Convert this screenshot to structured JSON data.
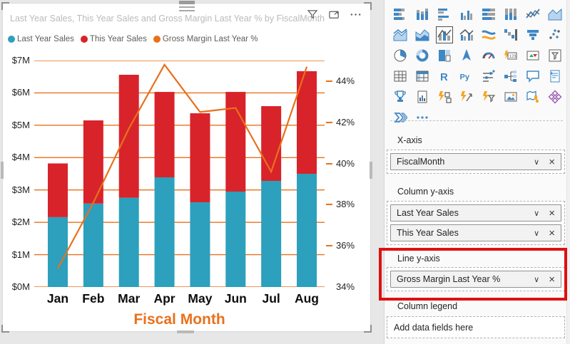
{
  "visual": {
    "title": "Last Year Sales, This Year Sales and Gross Margin Last Year % by FiscalMonth",
    "header_icons": [
      "filter-icon",
      "focus-mode-icon",
      "more-options-icon"
    ]
  },
  "chart_data": {
    "type": "combo-stacked-column-and-line",
    "title": "Last Year Sales, This Year Sales and Gross Margin Last Year % by FiscalMonth",
    "categories": [
      "Jan",
      "Feb",
      "Mar",
      "Apr",
      "May",
      "Jun",
      "Jul",
      "Aug"
    ],
    "series": [
      {
        "name": "Last Year Sales",
        "type": "column",
        "role": "stack-bottom",
        "color": "#2CA0BC",
        "unit": "$M",
        "values": [
          2.16,
          2.58,
          2.76,
          3.39,
          2.62,
          2.95,
          3.28,
          3.5
        ]
      },
      {
        "name": "This Year Sales",
        "type": "column",
        "role": "stack-top",
        "color": "#D8232A",
        "unit": "$M",
        "values": [
          1.66,
          2.57,
          3.8,
          2.64,
          2.75,
          3.08,
          2.31,
          3.17
        ]
      },
      {
        "name": "Gross Margin Last Year %",
        "type": "line",
        "color": "#E8711C",
        "unit": "%",
        "values": [
          34.9,
          38.1,
          41.7,
          44.8,
          42.5,
          42.7,
          39.6,
          44.7
        ]
      }
    ],
    "xlabel": "Fiscal Month",
    "xlabel_color": "#E8711C",
    "y_left": {
      "min": 0,
      "max": 7,
      "ticks": [
        "$0M",
        "$1M",
        "$2M",
        "$3M",
        "$4M",
        "$5M",
        "$6M",
        "$7M"
      ]
    },
    "y_right": {
      "min": 34,
      "max": 45,
      "tick_values": [
        34,
        36,
        38,
        40,
        42,
        44
      ],
      "ticks": [
        "34%",
        "36%",
        "38%",
        "40%",
        "42%",
        "44%"
      ]
    },
    "grid": true,
    "gridline_color": "#E8711C",
    "legend_position": "top-left"
  },
  "panel": {
    "selected_icon": "line-and-stacked-column-chart",
    "icons": [
      {
        "name": "stacked-bar-chart",
        "kind": "hbars"
      },
      {
        "name": "stacked-column-chart",
        "kind": "vstack"
      },
      {
        "name": "clustered-bar-chart",
        "kind": "hclus"
      },
      {
        "name": "clustered-column-chart",
        "kind": "vclus"
      },
      {
        "name": "hundred-percent-stacked-bar-chart",
        "kind": "hfull"
      },
      {
        "name": "hundred-percent-stacked-column-chart",
        "kind": "vfull"
      },
      {
        "name": "line-chart",
        "kind": "line"
      },
      {
        "name": "area-chart",
        "kind": "area"
      },
      {
        "name": "stacked-area-chart",
        "kind": "sarea"
      },
      {
        "name": "hundred-percent-stacked-area-chart",
        "kind": "farea"
      },
      {
        "name": "line-and-stacked-column-chart",
        "kind": "combo"
      },
      {
        "name": "line-and-clustered-column-chart",
        "kind": "combo2"
      },
      {
        "name": "ribbon-chart",
        "kind": "ribbon"
      },
      {
        "name": "waterfall-chart",
        "kind": "waterfall"
      },
      {
        "name": "funnel-chart",
        "kind": "funnel"
      },
      {
        "name": "scatter-chart",
        "kind": "scatter"
      },
      {
        "name": "pie-chart",
        "kind": "pie"
      },
      {
        "name": "donut-chart",
        "kind": "donut"
      },
      {
        "name": "treemap",
        "kind": "treemap"
      },
      {
        "name": "azure-map",
        "kind": "nav"
      },
      {
        "name": "gauge",
        "kind": "gauge"
      },
      {
        "name": "card",
        "kind": "card123"
      },
      {
        "name": "kpi",
        "kind": "kpi"
      },
      {
        "name": "slicer-new",
        "kind": "slicerbox"
      },
      {
        "name": "table",
        "kind": "table"
      },
      {
        "name": "matrix",
        "kind": "matrix"
      },
      {
        "name": "r-script-visual",
        "kind": "rtext"
      },
      {
        "name": "python-visual",
        "kind": "pytext"
      },
      {
        "name": "slicer",
        "kind": "sliders"
      },
      {
        "name": "decomposition-tree",
        "kind": "tree"
      },
      {
        "name": "qa-visual",
        "kind": "chat"
      },
      {
        "name": "smart-narrative",
        "kind": "docnote"
      },
      {
        "name": "metrics",
        "kind": "trophy"
      },
      {
        "name": "paginated-report",
        "kind": "docchart"
      },
      {
        "name": "power-apps-visual",
        "kind": "zapbox"
      },
      {
        "name": "quick-chart-visual",
        "kind": "zaparrow"
      },
      {
        "name": "quick-filter-visual",
        "kind": "zapslice"
      },
      {
        "name": "image-visual",
        "kind": "image"
      },
      {
        "name": "arcgis-map",
        "kind": "mappin"
      },
      {
        "name": "appsource-visual",
        "kind": "diamonds"
      },
      {
        "name": "power-automate-visual",
        "kind": "flow"
      },
      {
        "name": "get-more-visuals",
        "kind": "more"
      }
    ],
    "wells": {
      "x_axis": {
        "label": "X-axis",
        "fields": [
          "FiscalMonth"
        ]
      },
      "column_y_axis": {
        "label": "Column y-axis",
        "fields": [
          "Last Year Sales",
          "This Year Sales"
        ]
      },
      "line_y_axis": {
        "label": "Line y-axis",
        "fields": [
          "Gross Margin Last Year %"
        ]
      },
      "column_legend": {
        "label": "Column legend",
        "placeholder": "Add data fields here"
      }
    },
    "pill_glyphs": {
      "chevron": "∨",
      "remove": "×"
    }
  },
  "annotation": {
    "type": "rectangle",
    "color": "#DD1111",
    "highlights": "Line y-axis field well"
  }
}
